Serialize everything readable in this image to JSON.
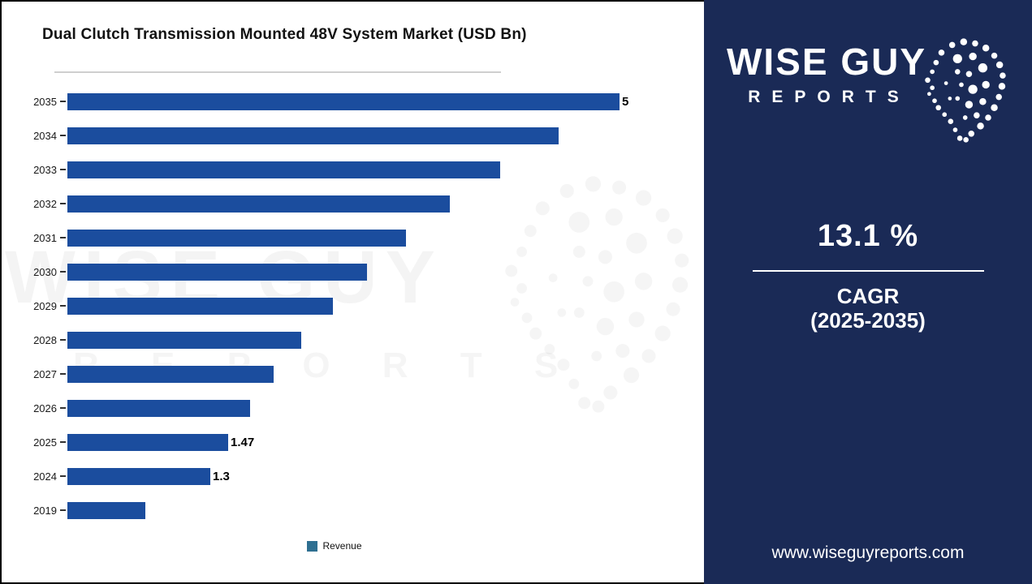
{
  "chart_data": {
    "type": "bar",
    "orientation": "horizontal",
    "title": "Dual Clutch Transmission Mounted 48V System Market (USD Bn)",
    "xlabel": "",
    "ylabel": "",
    "xlim": [
      0,
      5.5
    ],
    "grid": false,
    "legend_position": "bottom-center",
    "categories": [
      "2035",
      "2034",
      "2033",
      "2032",
      "2031",
      "2030",
      "2029",
      "2028",
      "2027",
      "2026",
      "2025",
      "2024",
      "2019"
    ],
    "series": [
      {
        "name": "Revenue",
        "values": [
          5.04,
          4.48,
          3.95,
          3.49,
          3.09,
          2.73,
          2.42,
          2.13,
          1.88,
          1.67,
          1.47,
          1.3,
          0.71
        ],
        "bar_labels": [
          "5",
          "",
          "",
          "",
          "",
          "",
          "",
          "",
          "",
          "",
          "1.47",
          "1.3",
          ""
        ]
      }
    ],
    "bar_color": "#1b4d9e",
    "legend": [
      {
        "label": "Revenue",
        "color": "#2e6f91"
      }
    ]
  },
  "watermark": {
    "line1": "WISE GUY",
    "line2": "R E P O R T S"
  },
  "panel": {
    "background": "#1a2a56",
    "logo_line1": "WISE GUY",
    "logo_line2": "REPORTS",
    "cagr_value": "13.1 %",
    "cagr_label_line1": "CAGR",
    "cagr_label_line2": "(2025-2035)",
    "website": "www.wiseguyreports.com"
  }
}
